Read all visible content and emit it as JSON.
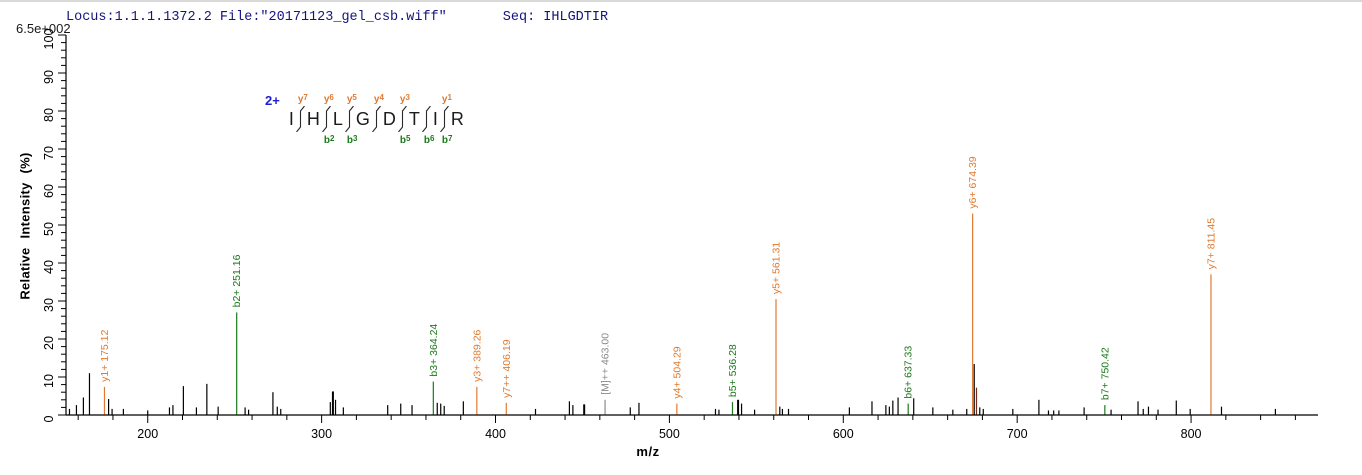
{
  "header": {
    "intensity_scale": "6.5e+002",
    "locus_file": "Locus:1.1.1.1372.2 File:\"20171123_gel_csb.wiff\"",
    "seq_label": "Seq: IHLGDTIR"
  },
  "sequence_annotation": {
    "charge": "2+",
    "residues": [
      "I",
      "H",
      "L",
      "G",
      "D",
      "T",
      "I",
      "R"
    ],
    "boundaries": [
      {
        "y": "y7",
        "b": ""
      },
      {
        "y": "y6",
        "b": "b2"
      },
      {
        "y": "y5",
        "b": "b3"
      },
      {
        "y": "y4",
        "b": ""
      },
      {
        "y": "y3",
        "b": "b5"
      },
      {
        "y": "",
        "b": "b6"
      },
      {
        "y": "y1",
        "b": "b7"
      }
    ]
  },
  "colors": {
    "y": "#e07a30",
    "b": "#1a7a1a",
    "M": "#8a8a8a",
    "dark": "#7a2a1a",
    "default": "#000000",
    "axis": "#000000",
    "header_navy": "#14147e",
    "charge_blue": "#1f1fd0"
  },
  "chart_data": {
    "type": "bar",
    "subtype": "mass-spectrum",
    "title": "",
    "xlabel": "m/z",
    "ylabel": "Relative  Intensity  (%)",
    "xlim": [
      153,
      873
    ],
    "ylim": [
      0,
      100
    ],
    "x_major_ticks": [
      200,
      300,
      400,
      500,
      600,
      700,
      800
    ],
    "x_minor_step": 20,
    "y_major_step": 10,
    "y_minor_step": 2,
    "grid": "off",
    "legend": "none",
    "labeled_peaks": [
      {
        "mz": 175.12,
        "h": 7.4,
        "t": "y",
        "label": "y1+ 175.12"
      },
      {
        "mz": 251.16,
        "h": 27.0,
        "t": "b",
        "label": "b2+ 251.16"
      },
      {
        "mz": 364.24,
        "h": 8.8,
        "t": "b",
        "label": "b3+ 364.24"
      },
      {
        "mz": 389.26,
        "h": 7.4,
        "t": "y",
        "label": "y3+ 389.26"
      },
      {
        "mz": 406.19,
        "h": 3.2,
        "t": "y",
        "label": "y7++ 406.19"
      },
      {
        "mz": 463.0,
        "h": 4.0,
        "t": "M",
        "label": "[M]++ 463.00"
      },
      {
        "mz": 504.29,
        "h": 3.0,
        "t": "y",
        "label": "y4+ 504.29"
      },
      {
        "mz": 536.28,
        "h": 3.4,
        "t": "b",
        "label": "b5+ 536.28"
      },
      {
        "mz": 561.31,
        "h": 30.5,
        "t": "y",
        "label": "y5+ 561.31"
      },
      {
        "mz": 637.33,
        "h": 3.0,
        "t": "b",
        "label": "b6+ 637.33"
      },
      {
        "mz": 674.39,
        "h": 53.0,
        "t": "y",
        "label": "y6+ 674.39"
      },
      {
        "mz": 750.42,
        "h": 2.6,
        "t": "b",
        "label": "b7+ 750.42"
      },
      {
        "mz": 811.45,
        "h": 37.0,
        "t": "y",
        "label": "y7+ 811.45"
      }
    ],
    "unlabeled_peaks": [
      {
        "mz": 155.0,
        "h": 1.6
      },
      {
        "mz": 159.0,
        "h": 2.6
      },
      {
        "mz": 163.0,
        "h": 4.6
      },
      {
        "mz": 166.5,
        "h": 11.0
      },
      {
        "mz": 177.5,
        "h": 4.2
      },
      {
        "mz": 179.5,
        "h": 1.6
      },
      {
        "mz": 186.0,
        "h": 1.6
      },
      {
        "mz": 200.0,
        "h": 1.2
      },
      {
        "mz": 212.5,
        "h": 2.0
      },
      {
        "mz": 214.5,
        "h": 2.6
      },
      {
        "mz": 220.5,
        "h": 7.6
      },
      {
        "mz": 228.0,
        "h": 2.0
      },
      {
        "mz": 234.0,
        "h": 8.2
      },
      {
        "mz": 240.5,
        "h": 2.2
      },
      {
        "mz": 256.0,
        "h": 2.0
      },
      {
        "mz": 258.0,
        "h": 1.4
      },
      {
        "mz": 272.0,
        "h": 6.0
      },
      {
        "mz": 274.5,
        "h": 2.2
      },
      {
        "mz": 276.5,
        "h": 1.6
      },
      {
        "mz": 305.0,
        "h": 3.4
      },
      {
        "mz": 306.5,
        "h": 6.2,
        "w": 2
      },
      {
        "mz": 308.0,
        "h": 4.0
      },
      {
        "mz": 312.5,
        "h": 2.0
      },
      {
        "mz": 338.0,
        "h": 2.6
      },
      {
        "mz": 345.5,
        "h": 3.0
      },
      {
        "mz": 352.0,
        "h": 2.6
      },
      {
        "mz": 366.5,
        "h": 3.2
      },
      {
        "mz": 368.5,
        "h": 3.0
      },
      {
        "mz": 370.5,
        "h": 2.4
      },
      {
        "mz": 381.5,
        "h": 3.6
      },
      {
        "mz": 423.0,
        "h": 1.6
      },
      {
        "mz": 442.5,
        "h": 3.6
      },
      {
        "mz": 444.5,
        "h": 2.6
      },
      {
        "mz": 451.0,
        "h": 2.8,
        "w": 2
      },
      {
        "mz": 477.5,
        "h": 2.0
      },
      {
        "mz": 482.5,
        "h": 3.2
      },
      {
        "mz": 526.5,
        "h": 1.6
      },
      {
        "mz": 528.5,
        "h": 1.4
      },
      {
        "mz": 539.5,
        "h": 4.0,
        "w": 2
      },
      {
        "mz": 541.5,
        "h": 3.0
      },
      {
        "mz": 549.0,
        "h": 1.4
      },
      {
        "mz": 563.5,
        "h": 2.2
      },
      {
        "mz": 565.0,
        "h": 1.6
      },
      {
        "mz": 568.5,
        "h": 1.6
      },
      {
        "mz": 603.5,
        "h": 2.0
      },
      {
        "mz": 616.5,
        "h": 3.6
      },
      {
        "mz": 624.5,
        "h": 2.6
      },
      {
        "mz": 626.5,
        "h": 2.2
      },
      {
        "mz": 628.5,
        "h": 3.8
      },
      {
        "mz": 631.5,
        "h": 4.6
      },
      {
        "mz": 640.5,
        "h": 4.4
      },
      {
        "mz": 651.5,
        "h": 2.0
      },
      {
        "mz": 663.0,
        "h": 1.4
      },
      {
        "mz": 671.0,
        "h": 1.6
      },
      {
        "mz": 675.3,
        "h": 13.4
      },
      {
        "mz": 676.6,
        "h": 7.2,
        "t": "dark"
      },
      {
        "mz": 678.5,
        "h": 2.0
      },
      {
        "mz": 680.5,
        "h": 1.6
      },
      {
        "mz": 697.5,
        "h": 1.6
      },
      {
        "mz": 712.5,
        "h": 4.0
      },
      {
        "mz": 718.0,
        "h": 1.2
      },
      {
        "mz": 721.0,
        "h": 1.2
      },
      {
        "mz": 724.0,
        "h": 1.2
      },
      {
        "mz": 738.5,
        "h": 2.0
      },
      {
        "mz": 754.0,
        "h": 1.4
      },
      {
        "mz": 769.5,
        "h": 3.6
      },
      {
        "mz": 772.5,
        "h": 1.6
      },
      {
        "mz": 775.5,
        "h": 2.2
      },
      {
        "mz": 781.0,
        "h": 1.4
      },
      {
        "mz": 791.5,
        "h": 3.8
      },
      {
        "mz": 799.5,
        "h": 1.6
      },
      {
        "mz": 817.5,
        "h": 2.2
      },
      {
        "mz": 848.5,
        "h": 1.6
      }
    ]
  }
}
